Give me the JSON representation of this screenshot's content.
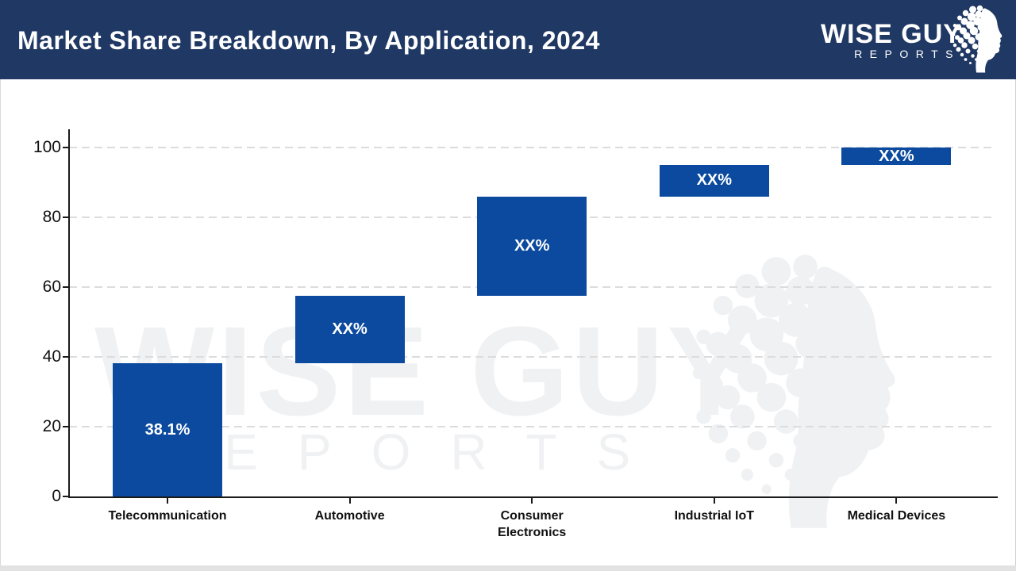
{
  "header": {
    "title": "Market Share Breakdown, By Application, 2024",
    "logo": {
      "line1": "WISE GUY",
      "line2": "REPORTS"
    }
  },
  "watermark": {
    "line1": "WISE GUY",
    "line2": "REPORTS"
  },
  "colors": {
    "header_bg": "#203864",
    "bar": "#0b4a9e",
    "bar_label": "#ffffff",
    "grid": "#dcdcdc",
    "axis": "#1a1a1a",
    "watermark": "#f0f1f3"
  },
  "chart_data": {
    "type": "bar",
    "variant": "waterfall",
    "title": "Market Share Breakdown, By Application, 2024",
    "categories": [
      "Telecommunication",
      "Automotive",
      "Consumer Electronics",
      "Industrial IoT",
      "Medical Devices"
    ],
    "tick_labels": [
      "Telecommunication",
      "Automotive",
      "Consumer\nElectronics",
      "Industrial IoT",
      "Medical Devices"
    ],
    "segments": [
      {
        "category": "Telecommunication",
        "start": 0,
        "end": 38.1,
        "value": 38.1,
        "label": "38.1%"
      },
      {
        "category": "Automotive",
        "start": 38.1,
        "end": 57.4,
        "value": 19.3,
        "label": "XX%"
      },
      {
        "category": "Consumer Electronics",
        "start": 57.4,
        "end": 86.0,
        "value": 28.6,
        "label": "XX%"
      },
      {
        "category": "Industrial IoT",
        "start": 86.0,
        "end": 95.0,
        "value": 9.0,
        "label": "XX%"
      },
      {
        "category": "Medical Devices",
        "start": 95.0,
        "end": 100.0,
        "value": 5.0,
        "label": "XX%"
      }
    ],
    "yticks": [
      0,
      20,
      40,
      60,
      80,
      100
    ],
    "ylim": [
      0,
      105
    ],
    "xlabel": "",
    "ylabel": "",
    "grid": "horizontal-dashed",
    "legend": null,
    "bar_color": "#0b4a9e"
  }
}
